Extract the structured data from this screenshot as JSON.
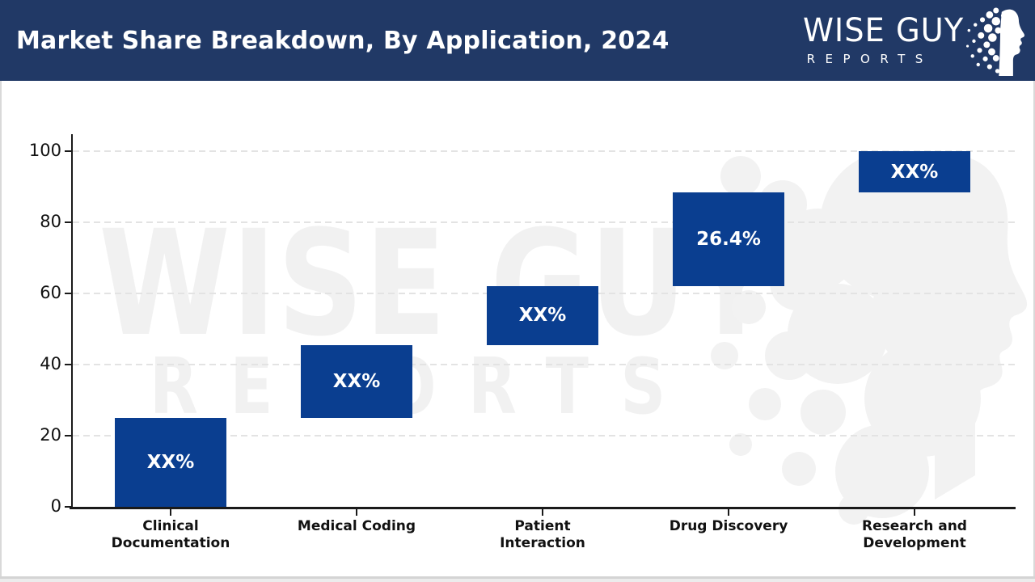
{
  "header": {
    "title": "Market Share Breakdown, By Application, 2024",
    "bg_color": "#213966"
  },
  "logo": {
    "line1": "WISE GUY",
    "line2": "REPORTS"
  },
  "watermark": {
    "line1": "WISE GUY",
    "line2": "REPORTS"
  },
  "chart_data": {
    "type": "bar",
    "subtype": "floating-waterfall",
    "title": "Market Share Breakdown, By Application, 2024",
    "xlabel": "",
    "ylabel": "",
    "ylim": [
      0,
      100
    ],
    "yticks": [
      0,
      20,
      40,
      60,
      80,
      100
    ],
    "grid": "horizontal-dashed",
    "legend": "none",
    "bar_color": "#0a3e90",
    "bar_label_color": "#ffffff",
    "categories": [
      "Clinical Documentation",
      "Medical Coding",
      "Patient Interaction",
      "Drug Discovery",
      "Research and Development"
    ],
    "category_label_lines": [
      [
        "Clinical",
        "Documentation"
      ],
      [
        "Medical Coding"
      ],
      [
        "Patient",
        "Interaction"
      ],
      [
        "Drug Discovery"
      ],
      [
        "Research and",
        "Development"
      ]
    ],
    "segments": [
      {
        "category": "Clinical Documentation",
        "start": 0,
        "end": 25,
        "label": "XX%"
      },
      {
        "category": "Medical Coding",
        "start": 25,
        "end": 45.5,
        "label": "XX%"
      },
      {
        "category": "Patient Interaction",
        "start": 45.5,
        "end": 62,
        "label": "XX%"
      },
      {
        "category": "Drug Discovery",
        "start": 62,
        "end": 88.4,
        "label": "26.4%"
      },
      {
        "category": "Research and Development",
        "start": 88.4,
        "end": 100,
        "label": "XX%"
      }
    ]
  }
}
